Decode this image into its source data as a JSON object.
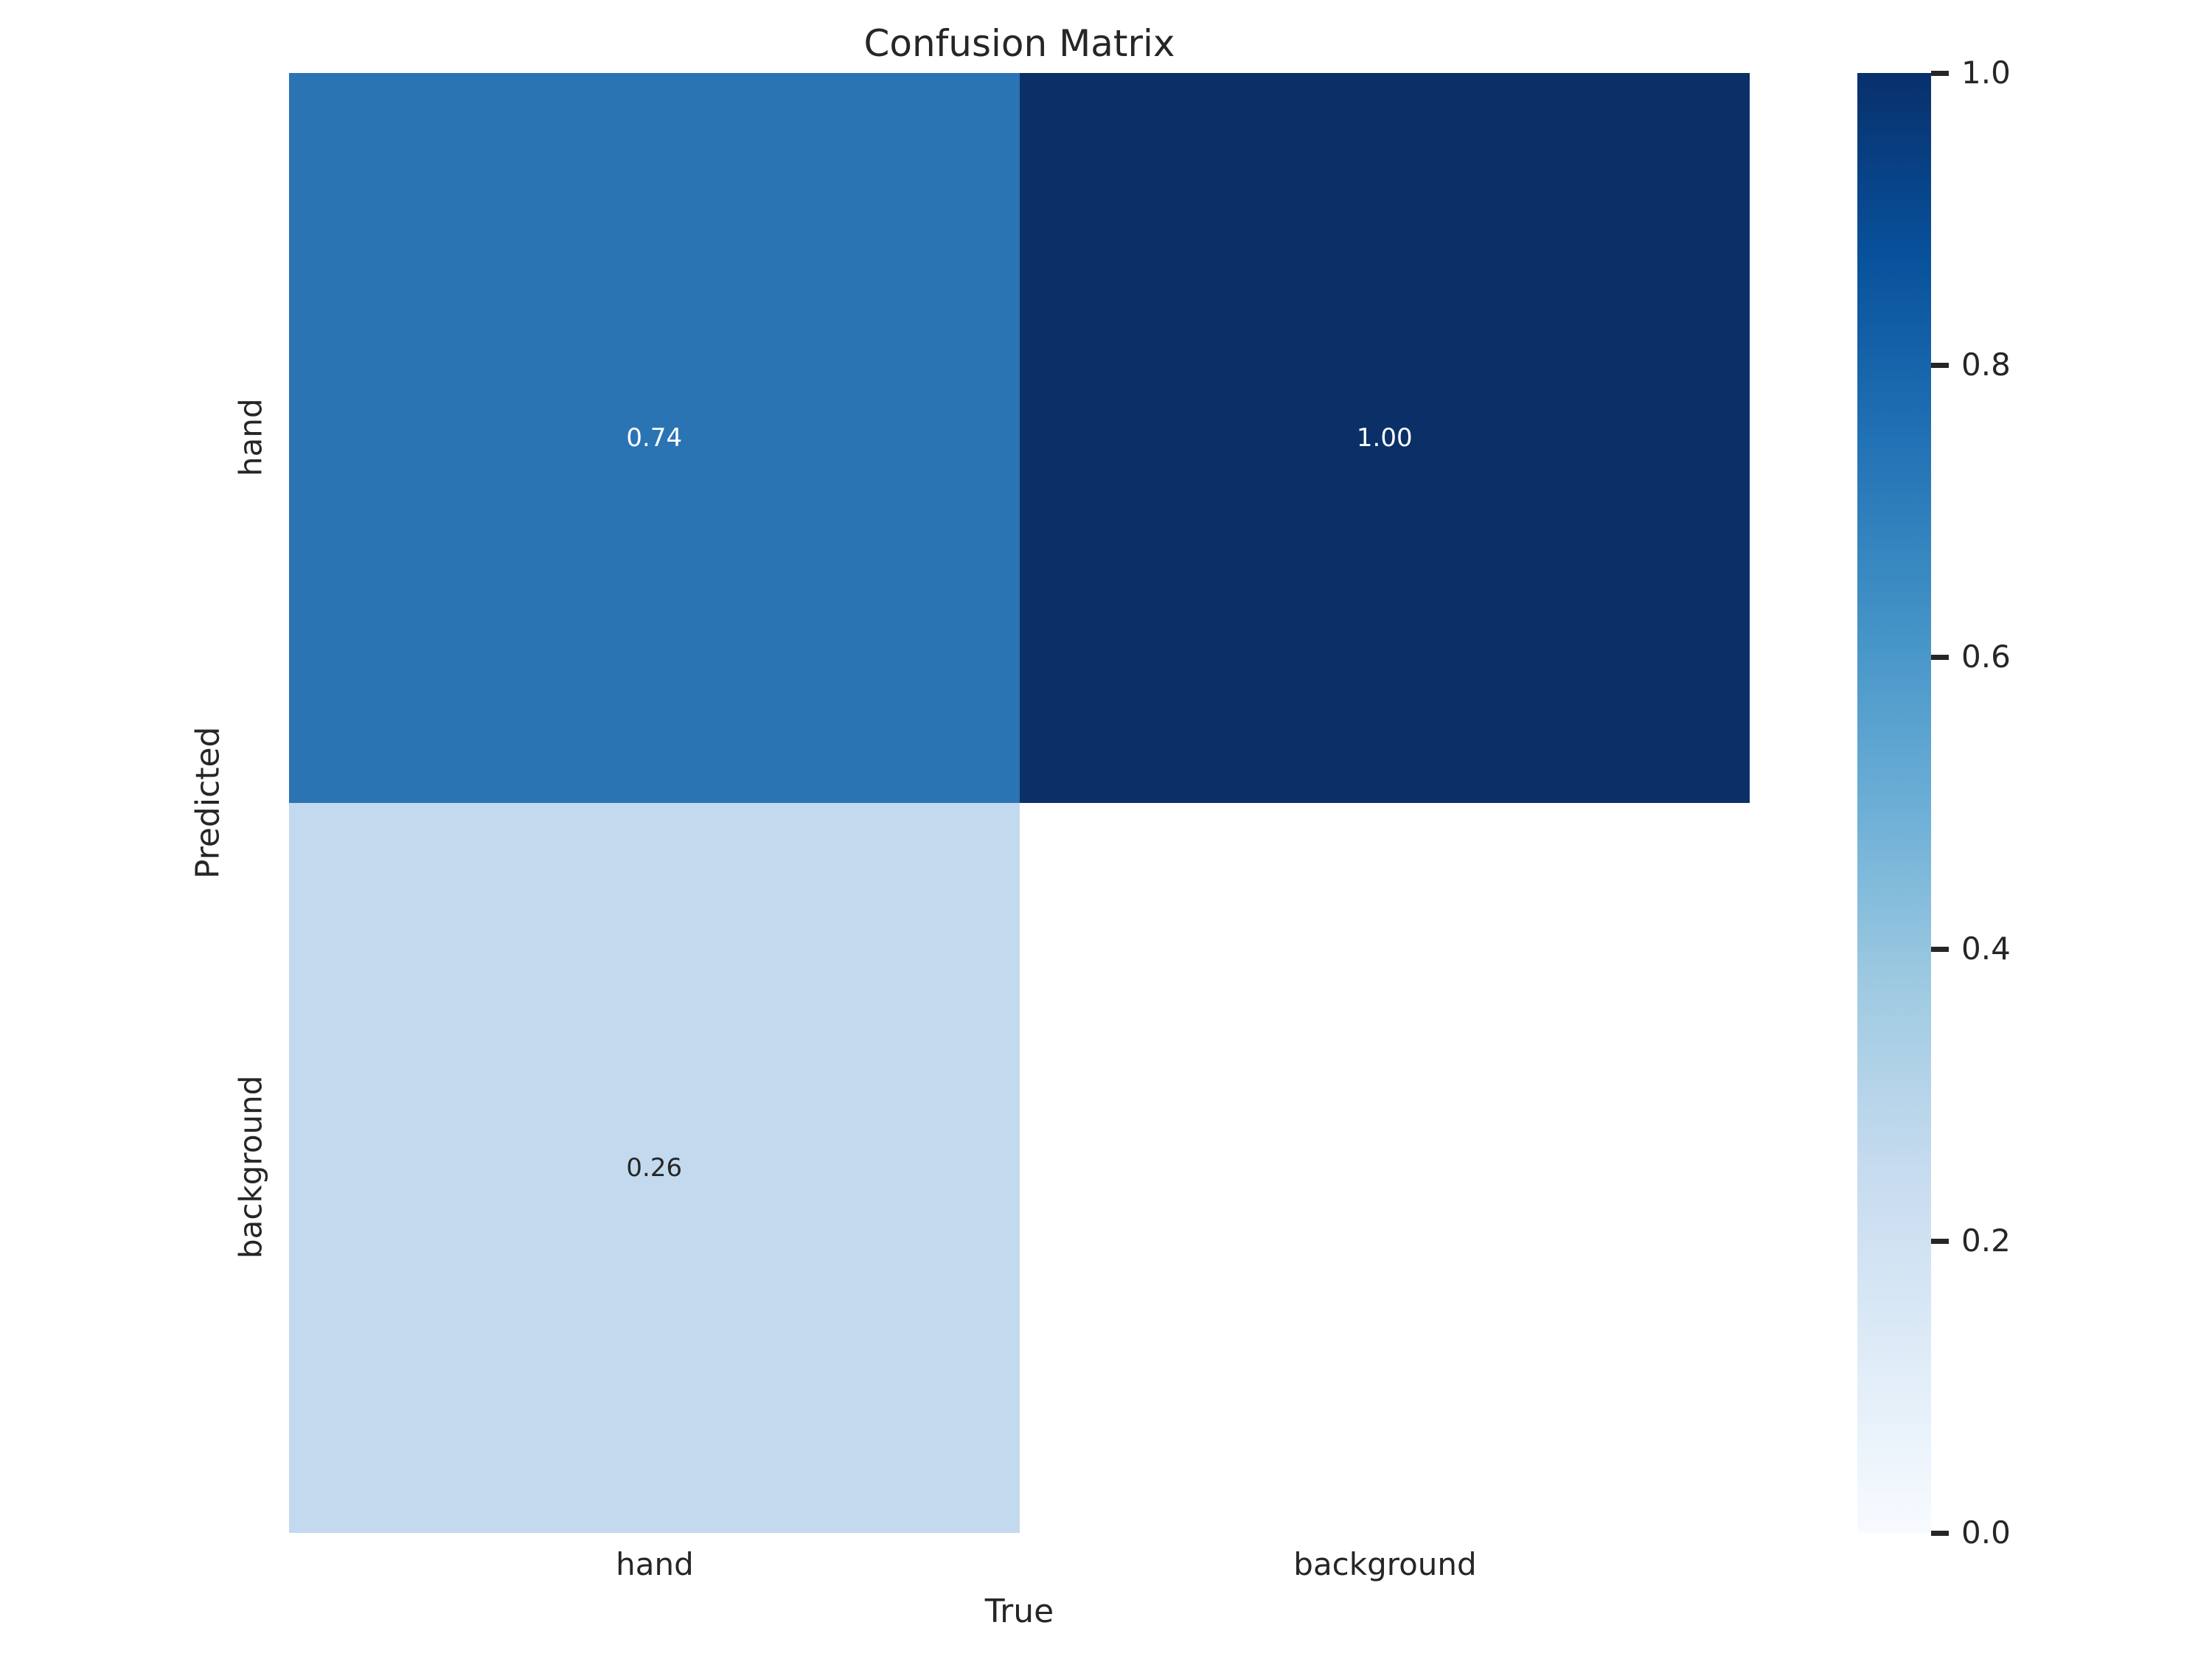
{
  "figure": {
    "background": "#ffffff",
    "text_color": "#262626"
  },
  "chart_data": {
    "type": "heatmap",
    "title": "Confusion Matrix",
    "xlabel": "True",
    "ylabel": "Predicted",
    "x_categories": [
      "hand",
      "background"
    ],
    "y_categories": [
      "hand",
      "background"
    ],
    "matrix_rows": [
      {
        "row": "hand",
        "values": [
          0.74,
          1.0
        ]
      },
      {
        "row": "background",
        "values": [
          0.26,
          null
        ]
      }
    ],
    "cells": [
      {
        "id": "hand-hand",
        "value_label": "0.74",
        "bg": "#2b74b4",
        "fg": "#ffffff"
      },
      {
        "id": "hand-background",
        "value_label": "1.00",
        "bg": "#0b3068",
        "fg": "#ffffff"
      },
      {
        "id": "background-hand",
        "value_label": "0.26",
        "bg": "#c3d9ee",
        "fg": "#262626"
      },
      {
        "id": "background-background",
        "value_label": "",
        "bg": "#ffffff",
        "fg": "#262626"
      }
    ],
    "colormap": "Blues",
    "colormap_stops": [
      "#f7fbff 0%",
      "#deebf7 12.5%",
      "#c6dbef 25%",
      "#9ecae1 37.5%",
      "#6baed6 50%",
      "#4292c6 62.5%",
      "#2171b5 75%",
      "#08519c 87.5%",
      "#08306b 100%"
    ],
    "colorbar_ticks": [
      "1.0",
      "0.8",
      "0.6",
      "0.4",
      "0.2",
      "0.0"
    ],
    "colorbar_range": [
      0.0,
      1.0
    ],
    "legend_position": "right-colorbar",
    "grid": false
  }
}
